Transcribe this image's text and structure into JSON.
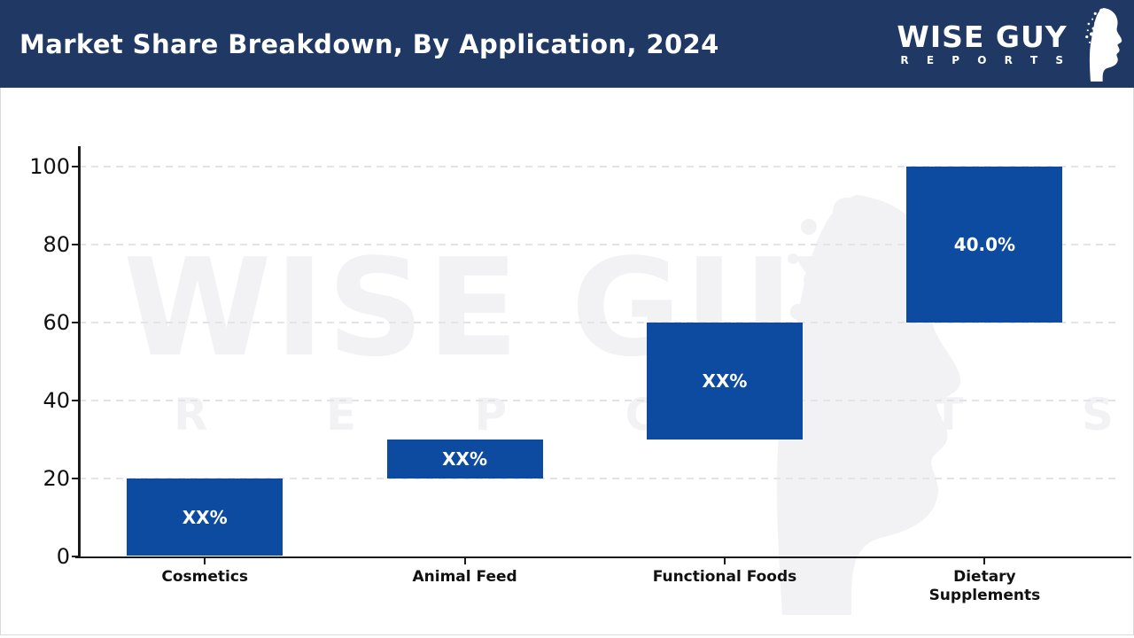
{
  "header": {
    "title": "Market Share Breakdown, By Application, 2024",
    "bg_color": "#1f3864",
    "text_color": "#ffffff",
    "logo": {
      "line1": "WISE GUY",
      "line2": "R E P O R T S"
    }
  },
  "watermark": {
    "line1": "WISE GUY",
    "line2": "R E P O R T S",
    "color": "#f2f2f4"
  },
  "chart_data": {
    "type": "bar",
    "variant": "waterfall",
    "title": "Market Share Breakdown, By Application, 2024",
    "categories": [
      "Cosmetics",
      "Animal Feed",
      "Functional Foods",
      "Dietary Supplements"
    ],
    "series": [
      {
        "name": "Market Share",
        "segments": [
          {
            "category": "Cosmetics",
            "start": 0,
            "end": 20,
            "label": "XX%"
          },
          {
            "category": "Animal Feed",
            "start": 20,
            "end": 30,
            "label": "XX%"
          },
          {
            "category": "Functional Foods",
            "start": 30,
            "end": 60,
            "label": "XX%"
          },
          {
            "category": "Dietary Supplements",
            "start": 60,
            "end": 100,
            "label": "40.0%"
          }
        ]
      }
    ],
    "xlabel": "",
    "ylabel": "",
    "ylim": [
      0,
      100
    ],
    "yticks": [
      0,
      20,
      40,
      60,
      80,
      100
    ],
    "grid": "horizontal-dashed",
    "legend": "none",
    "bar_color": "#0d4ba0",
    "bar_label_color": "#ffffff",
    "axis_color": "#1a1a1a",
    "grid_color": "#e4e4e7"
  }
}
